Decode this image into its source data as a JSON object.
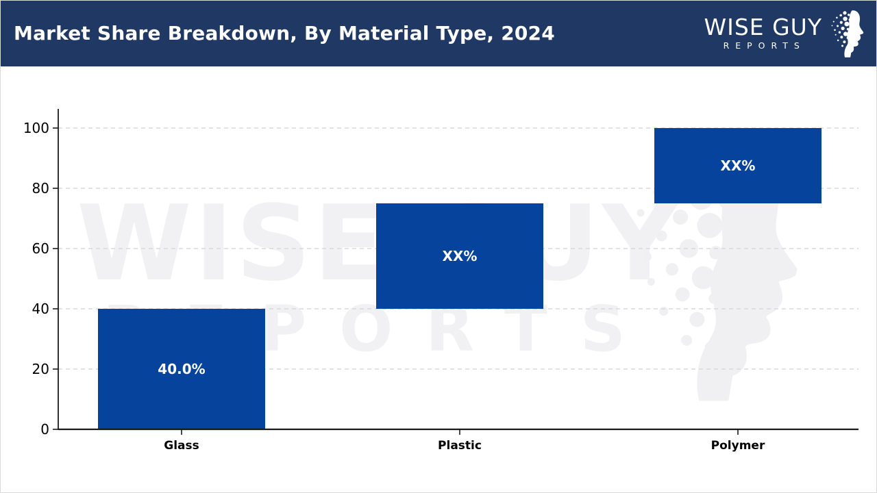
{
  "header": {
    "title": "Market Share Breakdown, By Material Type, 2024",
    "bg_color": "#1F3864",
    "logo": {
      "line1": "WISE GUY",
      "line2": "REPORTS"
    }
  },
  "watermark": {
    "line1": "WISE GUY",
    "line2": "REPORTS"
  },
  "chart_data": {
    "type": "bar",
    "subtype": "waterfall",
    "title": "Market Share Breakdown, By Material Type, 2024",
    "categories": [
      "Glass",
      "Plastic",
      "Polymer"
    ],
    "segments": [
      {
        "category": "Glass",
        "start": 0,
        "end": 40,
        "label": "40.0%"
      },
      {
        "category": "Plastic",
        "start": 40,
        "end": 75,
        "label": "XX%"
      },
      {
        "category": "Polymer",
        "start": 75,
        "end": 100,
        "label": "XX%"
      }
    ],
    "y_ticks": [
      0,
      20,
      40,
      60,
      80,
      100
    ],
    "ylim": [
      0,
      106
    ],
    "xlabel": "",
    "ylabel": "",
    "grid": "horizontal-dashed",
    "legend": "none",
    "colors": {
      "bar": "#05439C",
      "bar_label": "#FFFFFF",
      "axis": "#1a1a1a",
      "grid": "#d9d9d9",
      "tick_label": "#000000"
    }
  }
}
